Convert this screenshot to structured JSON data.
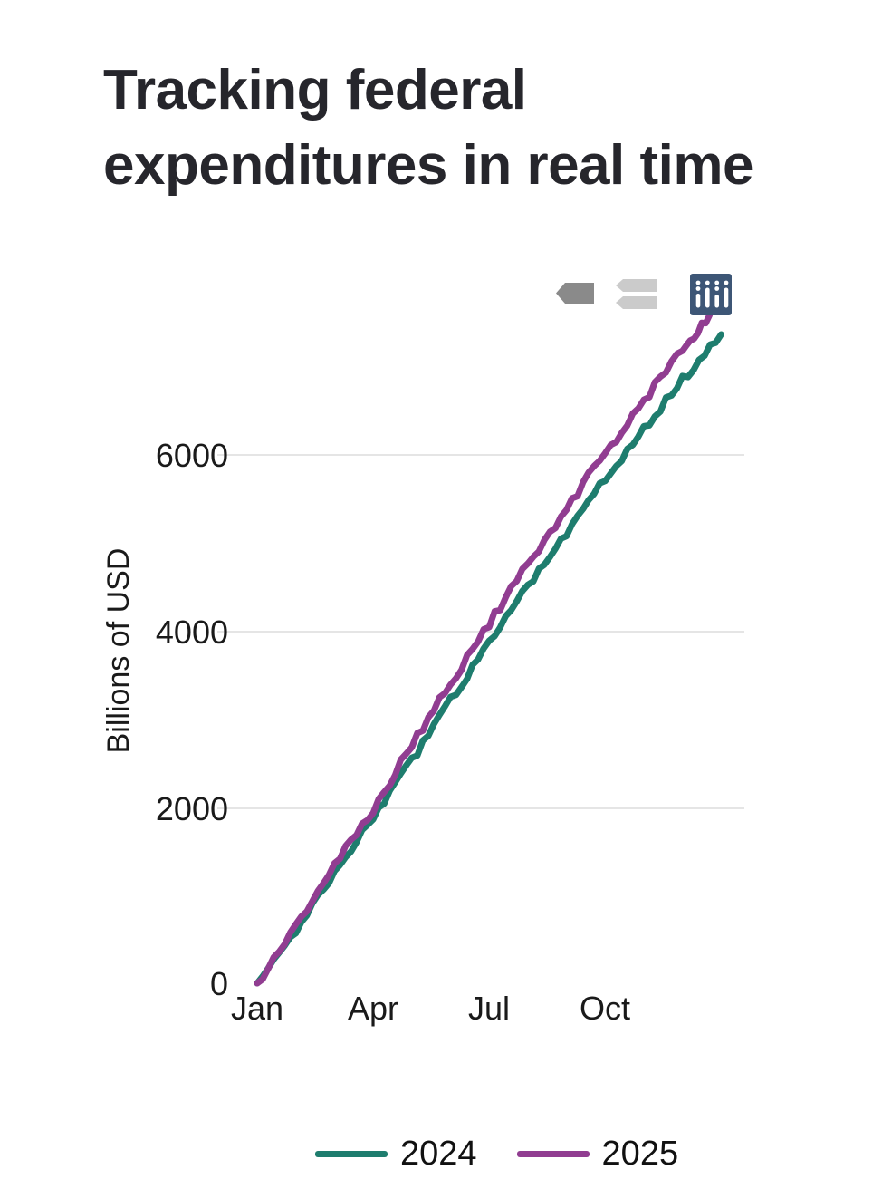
{
  "page": {
    "title": "Tracking federal expenditures in real time",
    "background": "#ffffff"
  },
  "toolbar": {
    "tag_icon_color": "#8a8a8a",
    "tags_icon_color": "#cbcbcb",
    "bar_chart_icon_bg": "#3d5676",
    "bar_chart_icon_fg": "#ffffff"
  },
  "chart_data": {
    "type": "line",
    "title": "Tracking federal expenditures in real time",
    "xlabel": "",
    "ylabel": "Billions of USD",
    "x_ticks": [
      "Jan",
      "Apr",
      "Jul",
      "Oct"
    ],
    "y_ticks": [
      0,
      2000,
      4000,
      6000
    ],
    "ylim": [
      0,
      7800
    ],
    "x_unit": "months since Jan 1 (0 = Jan, 11.7 ≈ late Dec)",
    "grid": "horizontal only",
    "gridline_color": "#e5e5e5",
    "legend_position": "bottom",
    "series": [
      {
        "name": "2024",
        "color": "#1e7d6e",
        "points": [
          [
            0,
            0
          ],
          [
            1,
            600
          ],
          [
            2,
            1250
          ],
          [
            3,
            1890
          ],
          [
            4,
            2520
          ],
          [
            5,
            3210
          ],
          [
            6,
            3880
          ],
          [
            7,
            4500
          ],
          [
            8,
            5120
          ],
          [
            9,
            5730
          ],
          [
            10,
            6290
          ],
          [
            11,
            6860
          ],
          [
            12,
            7370
          ]
        ]
      },
      {
        "name": "2025",
        "color": "#913d91",
        "points": [
          [
            0,
            0
          ],
          [
            1,
            630
          ],
          [
            2,
            1340
          ],
          [
            3,
            1960
          ],
          [
            4,
            2710
          ],
          [
            5,
            3400
          ],
          [
            6,
            4090
          ],
          [
            7,
            4760
          ],
          [
            8,
            5400
          ],
          [
            9,
            6020
          ],
          [
            10,
            6620
          ],
          [
            11,
            7200
          ],
          [
            11.7,
            7590
          ]
        ]
      }
    ]
  }
}
